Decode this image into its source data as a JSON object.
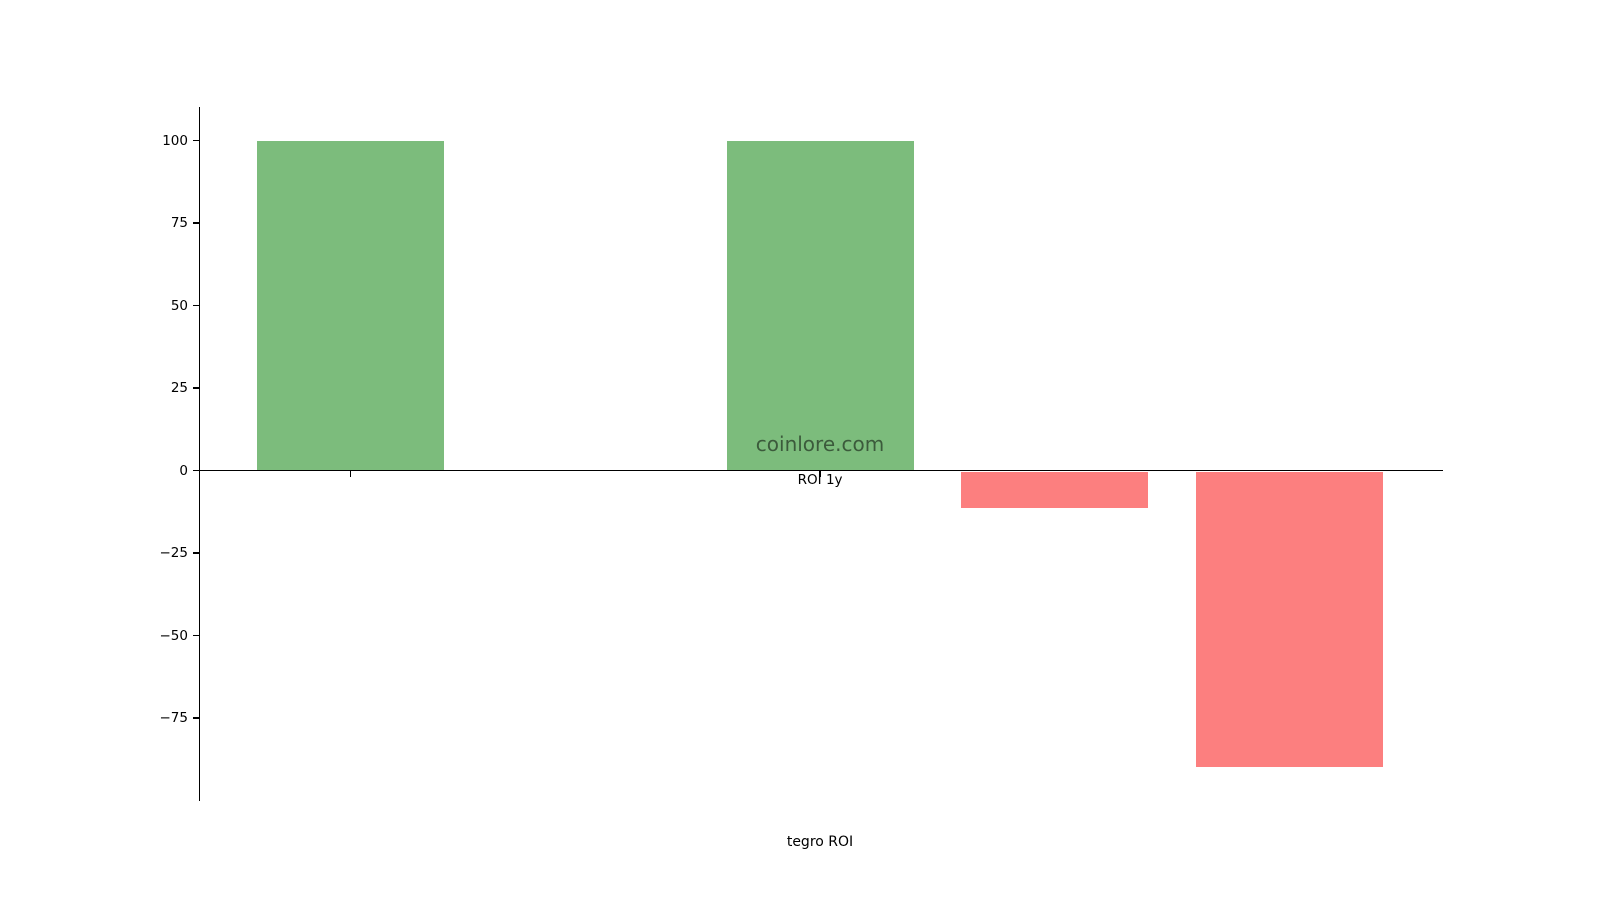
{
  "watermark": {
    "text": "coinlore.com"
  },
  "chart_data": {
    "type": "bar",
    "title": "tegro ROI",
    "watermark": "coinlore.com",
    "xlabel": "",
    "ylabel": "",
    "ylim": [
      -100,
      110
    ],
    "grid": false,
    "legend": null,
    "background_color": "#ffffff",
    "axis_color": "#000000",
    "positive_color": "#7cbc7c",
    "negative_color": "#fc7f7f",
    "yticks": [
      {
        "value": 100,
        "label": "100"
      },
      {
        "value": 75,
        "label": "75"
      },
      {
        "value": 50,
        "label": "50"
      },
      {
        "value": 25,
        "label": "25"
      },
      {
        "value": 0,
        "label": "0"
      },
      {
        "value": -25,
        "label": "−25"
      },
      {
        "value": -50,
        "label": "−50"
      },
      {
        "value": -75,
        "label": "−75"
      }
    ],
    "x_ticks": [
      {
        "slot": 0,
        "label": ""
      },
      {
        "slot": 2,
        "label": "ROI 1y"
      }
    ],
    "bars": [
      {
        "slot": 0,
        "label": "",
        "value": 100,
        "color": "#7cbc7c"
      },
      {
        "slot": 2,
        "label": "ROI 1y",
        "value": 100,
        "color": "#7cbc7c"
      },
      {
        "slot": 3,
        "label": "",
        "value": -11.5,
        "color": "#fc7f7f"
      },
      {
        "slot": 4,
        "label": "",
        "value": -90,
        "color": "#fc7f7f"
      }
    ]
  }
}
